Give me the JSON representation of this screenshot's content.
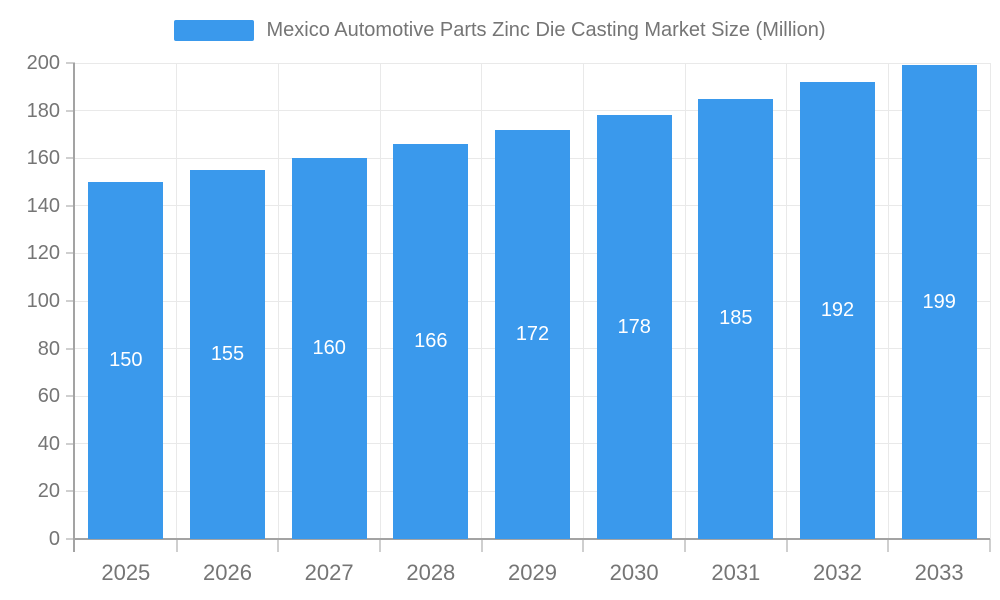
{
  "legend": {
    "label": "Mexico Automotive Parts Zinc Die Casting Market Size (Million)"
  },
  "chart_data": {
    "type": "bar",
    "title": "Mexico Automotive Parts Zinc Die Casting Market Size (Million)",
    "categories": [
      "2025",
      "2026",
      "2027",
      "2028",
      "2029",
      "2030",
      "2031",
      "2032",
      "2033"
    ],
    "values": [
      150,
      155,
      160,
      166,
      172,
      178,
      185,
      192,
      199
    ],
    "xlabel": "",
    "ylabel": "",
    "ylim": [
      0,
      200
    ],
    "yticks": [
      0,
      20,
      40,
      60,
      80,
      100,
      120,
      140,
      160,
      180,
      200
    ],
    "grid": true,
    "legend_position": "top-center",
    "value_label_position": "inside-center"
  },
  "colors": {
    "bar": "#3a99ec",
    "axis_line": "#a3a3a3",
    "grid_line": "#e9e9e9",
    "tick": "#cfcfcf",
    "text": "#757575",
    "bar_label": "#ffffff",
    "background": "#ffffff"
  }
}
